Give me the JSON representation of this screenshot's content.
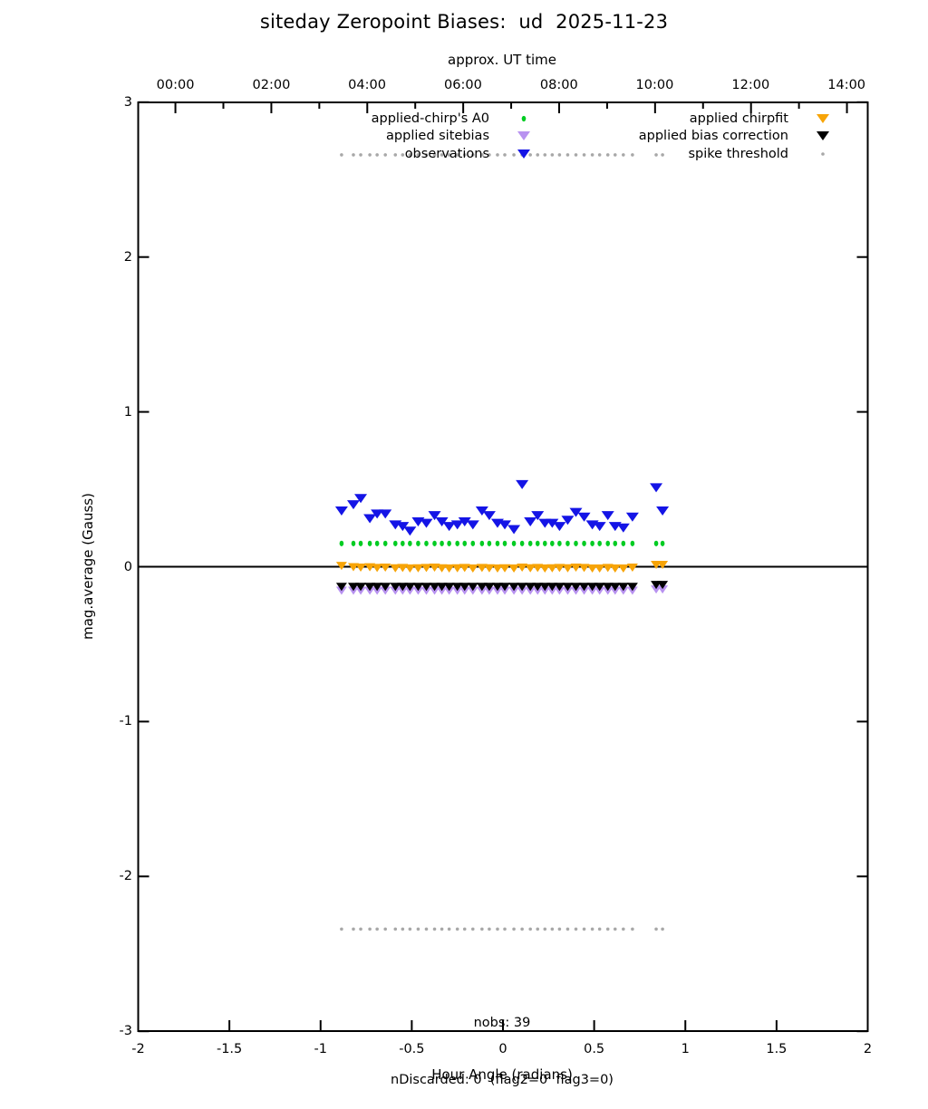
{
  "title": "siteday Zeropoint Biases:  ud  2025-11-23",
  "top_axis": {
    "label": "approx. UT time",
    "ticks": [
      {
        "label": "00:00",
        "ha": -1.796
      },
      {
        "label": "02:00",
        "ha": -1.27
      },
      {
        "label": "04:00",
        "ha": -0.745
      },
      {
        "label": "06:00",
        "ha": -0.219
      },
      {
        "label": "08:00",
        "ha": 0.307
      },
      {
        "label": "10:00",
        "ha": 0.832
      },
      {
        "label": "12:00",
        "ha": 1.358
      },
      {
        "label": "14:00",
        "ha": 1.884
      }
    ],
    "minor_tick_every_hours": 1
  },
  "x_axis": {
    "label": "Hour Angle (radians)",
    "min": -2,
    "max": 2,
    "ticks": [
      {
        "label": "-2",
        "v": -2
      },
      {
        "label": "-1.5",
        "v": -1.5
      },
      {
        "label": "-1",
        "v": -1
      },
      {
        "label": "-0.5",
        "v": -0.5
      },
      {
        "label": "0",
        "v": 0
      },
      {
        "label": "0.5",
        "v": 0.5
      },
      {
        "label": "1",
        "v": 1
      },
      {
        "label": "1.5",
        "v": 1.5
      },
      {
        "label": "2",
        "v": 2
      }
    ]
  },
  "y_axis": {
    "label": "mag.average (Gauss)",
    "min": -3,
    "max": 3,
    "ticks": [
      {
        "label": "3",
        "v": 3
      },
      {
        "label": "2",
        "v": 2
      },
      {
        "label": "1",
        "v": 1
      },
      {
        "label": "0",
        "v": 0
      },
      {
        "label": "-1",
        "v": -1
      },
      {
        "label": "-2",
        "v": -2
      },
      {
        "label": "-3",
        "v": -3
      }
    ],
    "zero_line": true
  },
  "annotations": {
    "nobs_line": "nobs: 39",
    "ndiscarded_line": "nDiscarded: 0  (flag2=0  flag3=0)"
  },
  "legend": {
    "left_column": [
      {
        "label": "applied-chirp's A0",
        "marker": "dot",
        "color": "#00cc22"
      },
      {
        "label": "applied sitebias",
        "marker": "triangle-down",
        "color": "#b892f0"
      },
      {
        "label": "observations",
        "marker": "triangle-down",
        "color": "#1414e6"
      }
    ],
    "right_column": [
      {
        "label": "applied chirpfit",
        "marker": "triangle-down",
        "color": "#f7a407"
      },
      {
        "label": "applied bias correction",
        "marker": "triangle-down",
        "color": "#000000"
      },
      {
        "label": "spike threshold",
        "marker": "small-dot",
        "color": "#a8a8a8"
      }
    ]
  },
  "chart_data": {
    "type": "scatter",
    "title": "siteday Zeropoint Biases:  ud  2025-11-23",
    "xlabel": "Hour Angle (radians)",
    "x2label": "approx. UT time",
    "ylabel": "mag.average (Gauss)",
    "xlim": [
      -2,
      2
    ],
    "ylim": [
      -3,
      3
    ],
    "grid": false,
    "legend_position": "top-inside-two-columns",
    "stats": {
      "nobs": 39,
      "nDiscarded": 0,
      "flag2": 0,
      "flag3": 0
    },
    "x": [
      -0.885,
      -0.82,
      -0.78,
      -0.73,
      -0.69,
      -0.645,
      -0.59,
      -0.55,
      -0.51,
      -0.465,
      -0.42,
      -0.375,
      -0.335,
      -0.295,
      -0.25,
      -0.21,
      -0.165,
      -0.115,
      -0.075,
      -0.03,
      0.01,
      0.06,
      0.105,
      0.15,
      0.19,
      0.23,
      0.27,
      0.31,
      0.355,
      0.4,
      0.445,
      0.49,
      0.53,
      0.575,
      0.615,
      0.66,
      0.71,
      0.84,
      0.875
    ],
    "series": [
      {
        "id": "spike_upper",
        "name": "spike threshold (upper)",
        "marker": "small-dot",
        "color": "#a8a8a8",
        "y_fill": 2.66
      },
      {
        "id": "spike_lower",
        "name": "spike threshold (lower)",
        "marker": "small-dot",
        "color": "#a8a8a8",
        "y_fill": -2.34
      },
      {
        "id": "a0",
        "name": "applied-chirp's A0",
        "marker": "dot",
        "color": "#00cc22",
        "y_fill": 0.15
      },
      {
        "id": "sitebias",
        "name": "applied sitebias",
        "marker": "triangle-down",
        "color": "#b892f0",
        "y_fill": -0.155,
        "y_overrides": {
          "37": -0.147,
          "38": -0.147
        }
      },
      {
        "id": "biascorr",
        "name": "applied bias correction",
        "marker": "triangle-down",
        "color": "#000000",
        "y_fill": -0.13,
        "y_overrides": {
          "37": -0.118,
          "38": -0.118
        }
      },
      {
        "id": "chirpfit",
        "name": "applied chirpfit",
        "marker": "triangle-down",
        "color": "#f7a407",
        "y": [
          0.005,
          -0.003,
          -0.006,
          -0.004,
          -0.008,
          -0.006,
          -0.01,
          -0.008,
          -0.012,
          -0.01,
          -0.008,
          -0.006,
          -0.01,
          -0.012,
          -0.01,
          -0.008,
          -0.012,
          -0.008,
          -0.01,
          -0.012,
          -0.01,
          -0.012,
          -0.006,
          -0.01,
          -0.008,
          -0.012,
          -0.01,
          -0.008,
          -0.01,
          -0.006,
          -0.008,
          -0.012,
          -0.012,
          -0.008,
          -0.012,
          -0.012,
          -0.006,
          0.012,
          0.012
        ]
      },
      {
        "id": "observations",
        "name": "observations",
        "marker": "triangle-down",
        "color": "#1414e6",
        "y": [
          0.36,
          0.4,
          0.44,
          0.31,
          0.34,
          0.34,
          0.27,
          0.26,
          0.23,
          0.29,
          0.28,
          0.33,
          0.29,
          0.26,
          0.27,
          0.29,
          0.27,
          0.36,
          0.33,
          0.28,
          0.27,
          0.24,
          0.53,
          0.29,
          0.33,
          0.28,
          0.28,
          0.26,
          0.3,
          0.35,
          0.32,
          0.27,
          0.26,
          0.33,
          0.26,
          0.25,
          0.32,
          0.51,
          0.36
        ]
      }
    ]
  }
}
